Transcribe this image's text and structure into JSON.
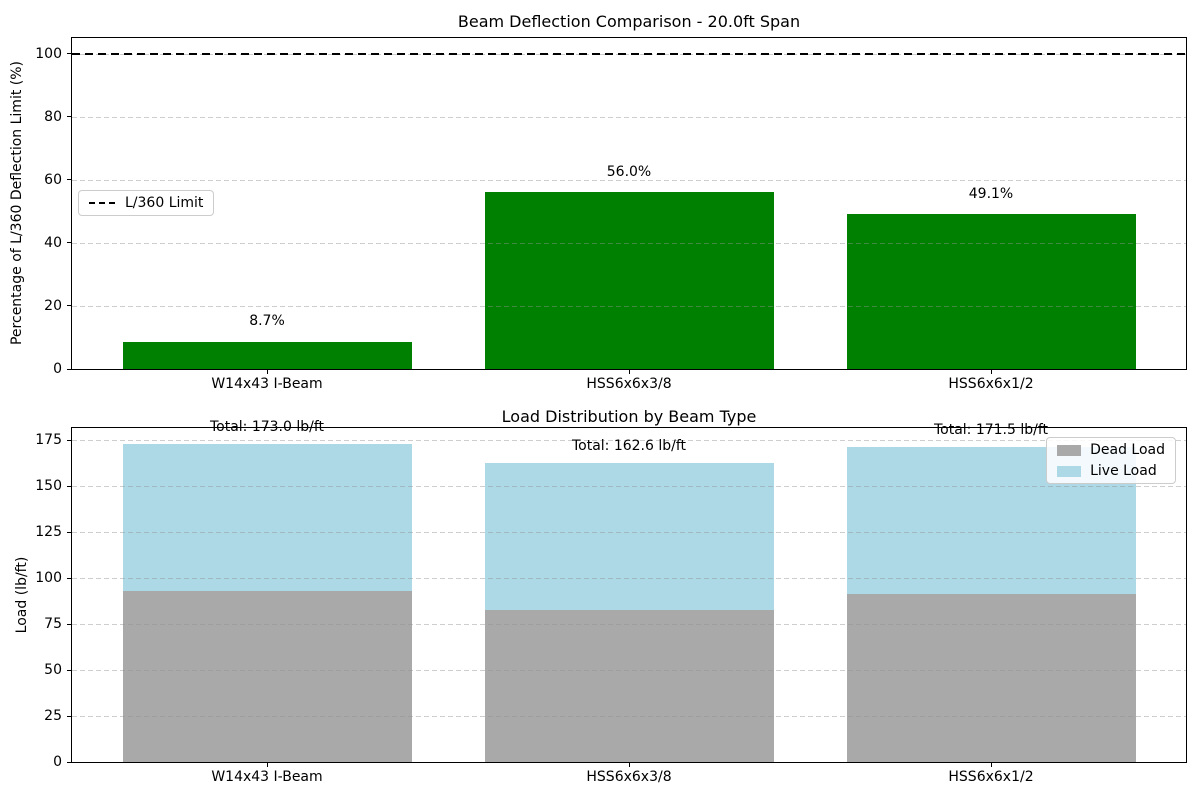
{
  "figure": {
    "background": "#ffffff"
  },
  "chart_data": [
    {
      "type": "bar",
      "title": "Beam Deflection Comparison - 20.0ft Span",
      "xlabel": "",
      "ylabel": "Percentage of L/360 Deflection Limit (%)",
      "categories": [
        "W14x43 I-Beam",
        "HSS6x6x3/8",
        "HSS6x6x1/2"
      ],
      "values": [
        8.7,
        56.0,
        49.1
      ],
      "bar_labels": [
        "8.7%",
        "56.0%",
        "49.1%"
      ],
      "bar_color": "#008000",
      "ylim": [
        0,
        105
      ],
      "yticks": [
        0,
        20,
        40,
        60,
        80,
        100
      ],
      "grid": true,
      "limit_line": {
        "value": 100,
        "label": "L/360 Limit",
        "color": "#000000",
        "style": "dashed"
      },
      "legend_position": "center-left"
    },
    {
      "type": "bar",
      "stacked": true,
      "title": "Load Distribution by Beam Type",
      "xlabel": "",
      "ylabel": "Load (lb/ft)",
      "categories": [
        "W14x43 I-Beam",
        "HSS6x6x3/8",
        "HSS6x6x1/2"
      ],
      "series": [
        {
          "name": "Dead Load",
          "color": "#a9a9a9",
          "values": [
            93.0,
            82.6,
            91.5
          ]
        },
        {
          "name": "Live Load",
          "color": "#add8e6",
          "values": [
            80.0,
            80.0,
            80.0
          ]
        }
      ],
      "totals": [
        173.0,
        162.6,
        171.5
      ],
      "total_labels": [
        "Total: 173.0 lb/ft",
        "Total: 162.6 lb/ft",
        "Total: 171.5 lb/ft"
      ],
      "ylim": [
        0,
        181.7
      ],
      "yticks": [
        0,
        25,
        50,
        75,
        100,
        125,
        150,
        175
      ],
      "grid": true,
      "legend_position": "top-right"
    }
  ]
}
